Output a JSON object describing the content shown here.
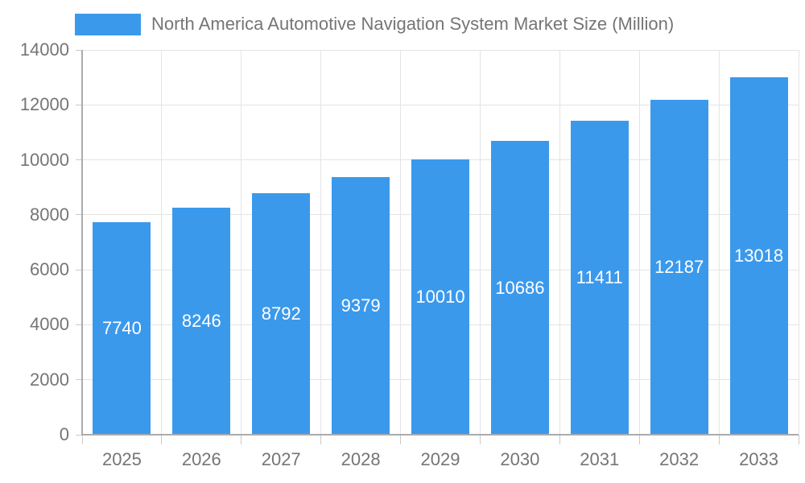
{
  "legend": {
    "label": "North America Automotive Navigation System Market Size (Million)"
  },
  "colors": {
    "bar": "#3B99EC",
    "grid": "#E4E4E4",
    "axis": "#ABABAB",
    "tick": "#C9C9C9",
    "text": "#757575",
    "bar_label": "#FFFFFF",
    "background": "#FFFFFF"
  },
  "chart_data": {
    "type": "bar",
    "title": "North America Automotive Navigation System Market Size (Million)",
    "categories": [
      "2025",
      "2026",
      "2027",
      "2028",
      "2029",
      "2030",
      "2031",
      "2032",
      "2033"
    ],
    "values": [
      7740,
      8246,
      8792,
      9379,
      10010,
      10686,
      11411,
      12187,
      13018
    ],
    "xlabel": "",
    "ylabel": "",
    "ylim": [
      0,
      14000
    ],
    "ytick_step": 2000,
    "yticks": [
      "0",
      "2000",
      "4000",
      "6000",
      "8000",
      "10000",
      "12000",
      "14000"
    ],
    "grid": true,
    "legend_position": "top",
    "value_label_position": "inside-center"
  }
}
